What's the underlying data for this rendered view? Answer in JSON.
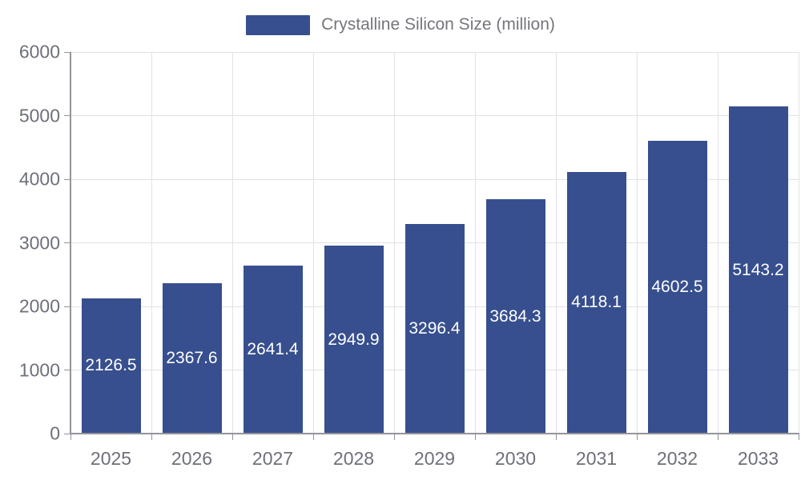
{
  "legend": {
    "label": "Crystalline Silicon Size (million)"
  },
  "colors": {
    "bar": "#374f8e",
    "grid_line": "#e2e2e7",
    "axis_line": "#94949b",
    "tick_mark": "#94949b",
    "tick_text": "#6e7079",
    "legend_text": "#75757c",
    "value_text": "#ffffff",
    "background": "#ffffff"
  },
  "chart_data": {
    "type": "bar",
    "title": "Crystalline Silicon Size (million)",
    "categories": [
      "2025",
      "2026",
      "2027",
      "2028",
      "2029",
      "2030",
      "2031",
      "2032",
      "2033"
    ],
    "values": [
      2126.5,
      2367.6,
      2641.4,
      2949.9,
      3296.4,
      3684.3,
      4118.1,
      4602.5,
      5143.2
    ],
    "series_name": "Crystalline Silicon Size (million)",
    "xlabel": "",
    "ylabel": "",
    "ylim": [
      0,
      6000
    ],
    "ytick_interval": 1000,
    "yticks": [
      "0",
      "1000",
      "2000",
      "3000",
      "4000",
      "5000",
      "6000"
    ],
    "grid": true,
    "legend_position": "top",
    "value_labels": "inside-center"
  }
}
